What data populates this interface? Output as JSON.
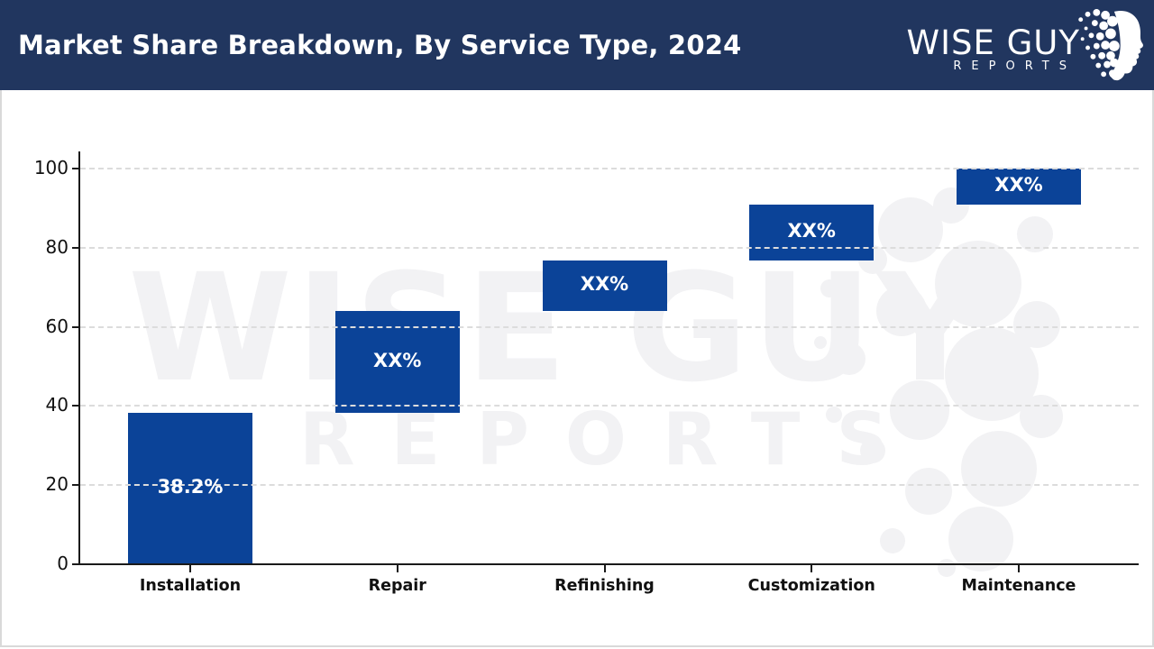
{
  "header": {
    "title": "Market Share Breakdown, By Service Type, 2024",
    "logo": {
      "line1": "WISE GUY",
      "line2": "REPORTS"
    }
  },
  "watermark": {
    "line1": "WISE GUY",
    "line2": "REPORTS"
  },
  "chart_data": {
    "type": "bar",
    "subtype": "waterfall",
    "title": "Market Share Breakdown, By Service Type, 2024",
    "categories": [
      "Installation",
      "Repair",
      "Refinishing",
      "Customization",
      "Maintenance"
    ],
    "segments": [
      {
        "category": "Installation",
        "start": 0,
        "end": 38.2,
        "label": "38.2%"
      },
      {
        "category": "Repair",
        "start": 38.2,
        "end": 64.0,
        "label": "XX%"
      },
      {
        "category": "Refinishing",
        "start": 64.0,
        "end": 76.7,
        "label": "XX%"
      },
      {
        "category": "Customization",
        "start": 76.7,
        "end": 91.0,
        "label": "XX%"
      },
      {
        "category": "Maintenance",
        "start": 91.0,
        "end": 100,
        "label": "XX%"
      }
    ],
    "yticks": [
      0,
      20,
      40,
      60,
      80,
      100
    ],
    "ylim": [
      0,
      105
    ],
    "xlabel": "",
    "ylabel": "",
    "grid": true,
    "grid_above_bars": true,
    "legend": "none",
    "bar_color": "#0b4398",
    "bar_label_color": "#ffffff"
  },
  "colors": {
    "header_bg": "#21365f",
    "bar": "#0b4398",
    "grid": "#dcdcdc",
    "axis": "#1a1a1a",
    "watermark": "#f2f2f4",
    "page_border": "#d9d9d9",
    "title_text": "#ffffff"
  }
}
